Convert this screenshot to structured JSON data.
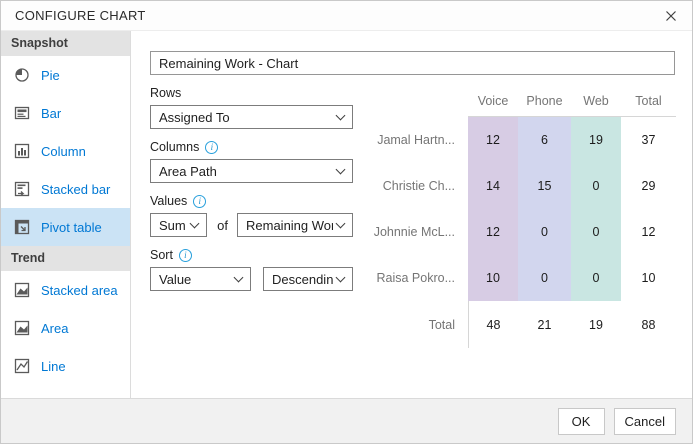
{
  "dialog": {
    "title": "CONFIGURE CHART"
  },
  "icons": {
    "info_glyph": "i"
  },
  "colors": {
    "accent_blue": "#0078d4",
    "selected_item_bg": "#cbe3f5",
    "section_header_bg": "#e3e3e3",
    "footer_bg": "#f1f1f1"
  },
  "sidebar": {
    "sections": [
      {
        "label": "Snapshot",
        "items": [
          {
            "label": "Pie",
            "icon": "pie-chart-icon",
            "selected": false
          },
          {
            "label": "Bar",
            "icon": "bar-chart-icon",
            "selected": false
          },
          {
            "label": "Column",
            "icon": "column-chart-icon",
            "selected": false
          },
          {
            "label": "Stacked bar",
            "icon": "stacked-bar-icon",
            "selected": false
          },
          {
            "label": "Pivot table",
            "icon": "pivot-table-icon",
            "selected": true
          }
        ]
      },
      {
        "label": "Trend",
        "items": [
          {
            "label": "Stacked area",
            "icon": "stacked-area-icon",
            "selected": false
          },
          {
            "label": "Area",
            "icon": "area-chart-icon",
            "selected": false
          },
          {
            "label": "Line",
            "icon": "line-chart-icon",
            "selected": false
          }
        ]
      }
    ]
  },
  "form": {
    "chart_title_value": "Remaining Work - Chart",
    "rows_label": "Rows",
    "rows_value": "Assigned To",
    "columns_label": "Columns",
    "columns_value": "Area Path",
    "values_label": "Values",
    "values_aggregation": "Sum",
    "values_of_label": "of",
    "values_field": "Remaining Work",
    "sort_label": "Sort",
    "sort_by": "Value",
    "sort_direction": "Descending"
  },
  "pivot": {
    "columns": [
      "Voice",
      "Phone",
      "Web",
      "Total"
    ],
    "column_colors": [
      "#d7cce4",
      "#d2d6ee",
      "#c9e6e2",
      "transparent"
    ],
    "rows": [
      {
        "label": "Jamal Hartn...",
        "values": [
          12,
          6,
          19,
          37
        ]
      },
      {
        "label": "Christie Ch...",
        "values": [
          14,
          15,
          0,
          29
        ]
      },
      {
        "label": "Johnnie McL...",
        "values": [
          12,
          0,
          0,
          12
        ]
      },
      {
        "label": "Raisa Pokro...",
        "values": [
          10,
          0,
          0,
          10
        ]
      }
    ],
    "total_row": {
      "label": "Total",
      "values": [
        48,
        21,
        19,
        88
      ]
    }
  },
  "footer": {
    "ok_label": "OK",
    "cancel_label": "Cancel"
  }
}
